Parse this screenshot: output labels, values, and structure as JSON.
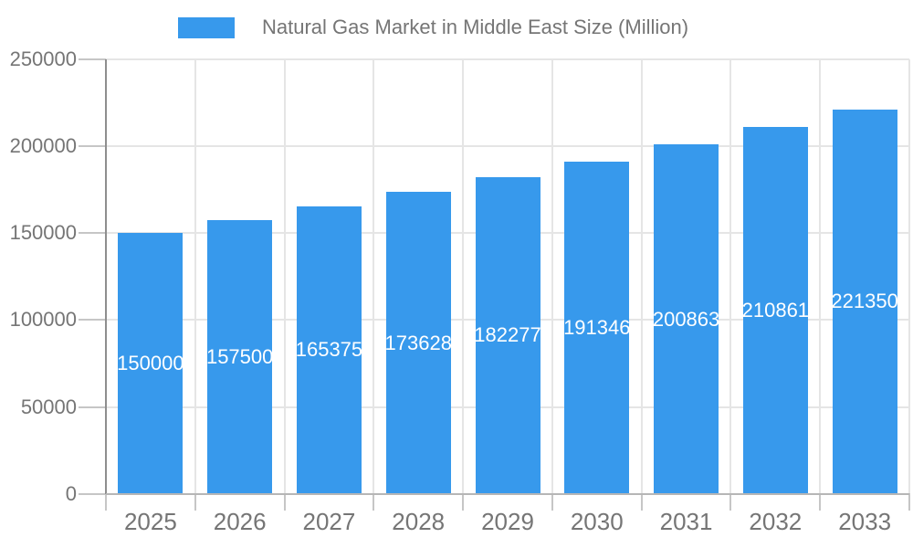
{
  "legend": {
    "label": "Natural Gas Market in Middle East Size (Million)"
  },
  "chart_data": {
    "type": "bar",
    "title": "Natural Gas Market in Middle East Size (Million)",
    "legend_position": "top",
    "grid": true,
    "categories": [
      "2025",
      "2026",
      "2027",
      "2028",
      "2029",
      "2030",
      "2031",
      "2032",
      "2033"
    ],
    "series": [
      {
        "name": "Natural Gas Market in Middle East Size (Million)",
        "values": [
          150000,
          157500,
          165375,
          173628,
          182277,
          191346,
          200863,
          210861,
          221350
        ]
      }
    ],
    "value_labels": [
      "150000",
      "157500",
      "165375",
      "173628",
      "182277",
      "191346",
      "200863",
      "210861",
      "221350"
    ],
    "xlabel": "",
    "ylabel": "",
    "ylim": [
      0,
      250000
    ],
    "ytick_interval": 50000,
    "ytick_labels": [
      "250000",
      "200000",
      "150000",
      "100000",
      "50000",
      "0"
    ],
    "colors": {
      "bar": "#3799EC",
      "bar_label_text": "#FFFFFF",
      "axis_text": "#757575",
      "gridline": "#E5E5E5",
      "tick": "#C6C6C6",
      "x_axis_line": "#B6B6B6",
      "y_axis_line": "#8E8E8E",
      "background": "#FFFFFF"
    }
  }
}
